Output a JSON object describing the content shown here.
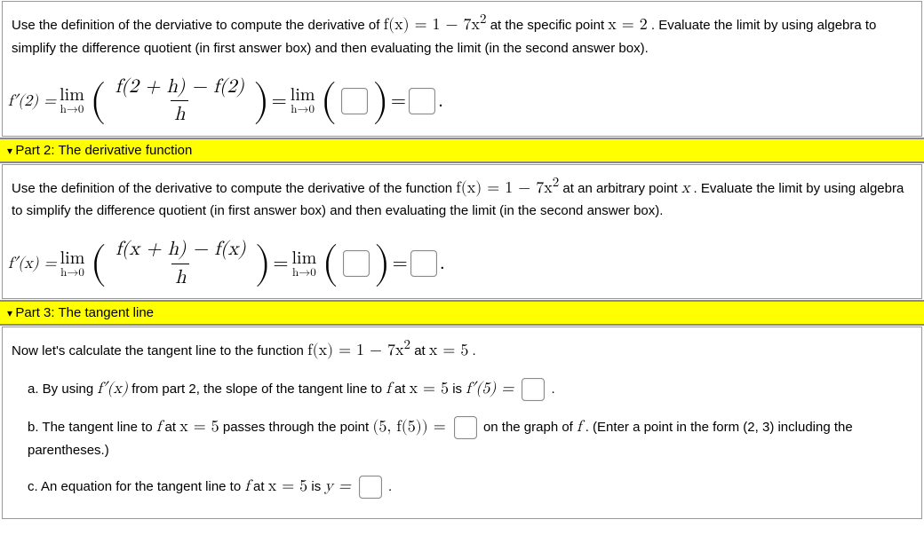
{
  "part1": {
    "instructions_a": "Use the definition of the derviative to compute the derivative of ",
    "fcn": "f(x) = 1 − 7x",
    "instructions_b": " at the specific point ",
    "point": "x = 2",
    "instructions_c": ". Evaluate the limit by using algebra to simplify the difference quotient (in first answer box) and then evaluating the limit (in the second answer box).",
    "lhs": "f′(2) = ",
    "lim_top": "lim",
    "lim_bot": "h→0",
    "frac_num": "f(2 + h) − f(2)",
    "frac_den": "h",
    "eq": " = ",
    "period": "."
  },
  "part2": {
    "header": "Part 2: The derivative function",
    "instructions_a": "Use the definition of the derivative to compute the derivative of the function ",
    "fcn": "f(x) = 1 − 7x",
    "instructions_b": " at an arbitrary point ",
    "point": "x",
    "instructions_c": ". Evaluate the limit by using algebra to simplify the difference quotient (in first answer box) and then evaluating the limit (in the second answer box).",
    "lhs": "f′(x) = ",
    "lim_top": "lim",
    "lim_bot": "h→0",
    "frac_num": "f(x + h) − f(x)",
    "frac_den": "h",
    "eq": " = ",
    "period": "."
  },
  "part3": {
    "header": "Part 3: The tangent line",
    "intro_a": "Now let's calculate the tangent line to the function ",
    "fcn": "f(x) = 1 − 7x",
    "intro_b": " at ",
    "point": "x = 5",
    "intro_c": ".",
    "a_txt1": "a. By using ",
    "a_fp": "f′(x)",
    "a_txt2": " from part 2, the slope of the tangent line to ",
    "a_f": "f",
    "a_txt3": " at ",
    "a_pt": "x = 5",
    "a_txt4": " is ",
    "a_fp5": "f′(5) = ",
    "a_end": ".",
    "b_txt1": "b. The tangent line to ",
    "b_f": "f",
    "b_txt2": " at ",
    "b_pt": "x = 5",
    "b_txt3": " passes through the point ",
    "b_pair": "(5, f(5)) = ",
    "b_txt4": " on the graph of ",
    "b_f2": "f",
    "b_txt5": ". (Enter a point in the form (2, 3) including the parentheses.)",
    "c_txt1": "c. An equation for the tangent line to ",
    "c_f": "f",
    "c_txt2": " at ",
    "c_pt": "x = 5",
    "c_txt3": " is ",
    "c_y": "y = ",
    "c_end": "."
  }
}
